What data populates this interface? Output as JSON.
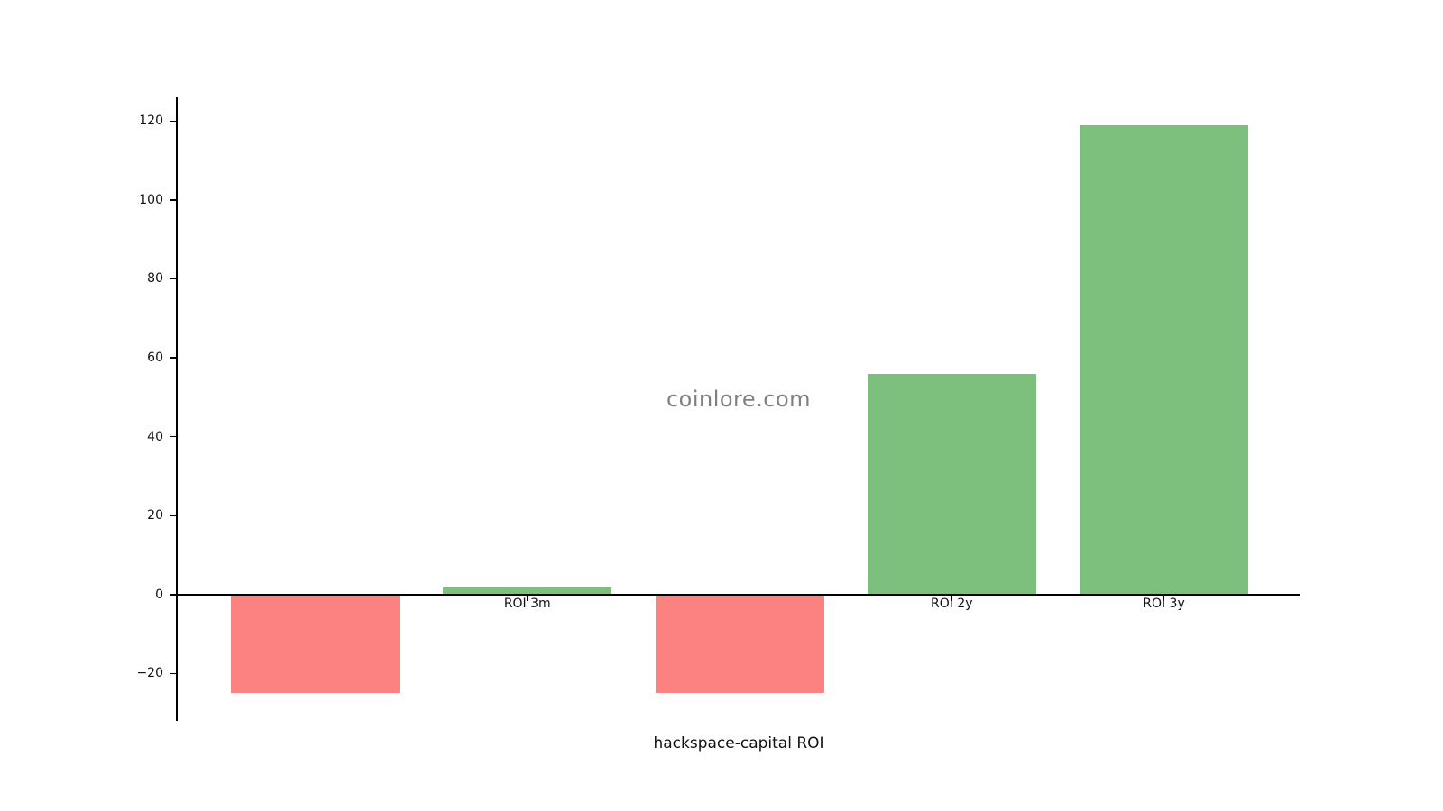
{
  "watermark": {
    "text": "coinlore.com"
  },
  "footer": {
    "title": "hackspace-capital ROI"
  },
  "chart_data": {
    "type": "bar",
    "title": "hackspace-capital ROI",
    "watermark": "coinlore.com",
    "categories": [
      "",
      "ROI 3m",
      "",
      "ROI 2y",
      "ROI 3y"
    ],
    "values": [
      -25,
      2,
      -25,
      56,
      119
    ],
    "bar_color_roles": [
      "negative",
      "positive",
      "negative",
      "positive",
      "positive"
    ],
    "yticks": [
      -20,
      0,
      20,
      40,
      60,
      80,
      100,
      120
    ],
    "ylim": [
      -32,
      126
    ],
    "xlabel": "hackspace-capital ROI",
    "ylabel": "",
    "grid": false,
    "legend": false,
    "colors": {
      "positive": "#7dbf7d",
      "negative": "#fc8181",
      "axis": "#000000",
      "watermark": "#7f7f7f",
      "text": "#111111"
    }
  }
}
